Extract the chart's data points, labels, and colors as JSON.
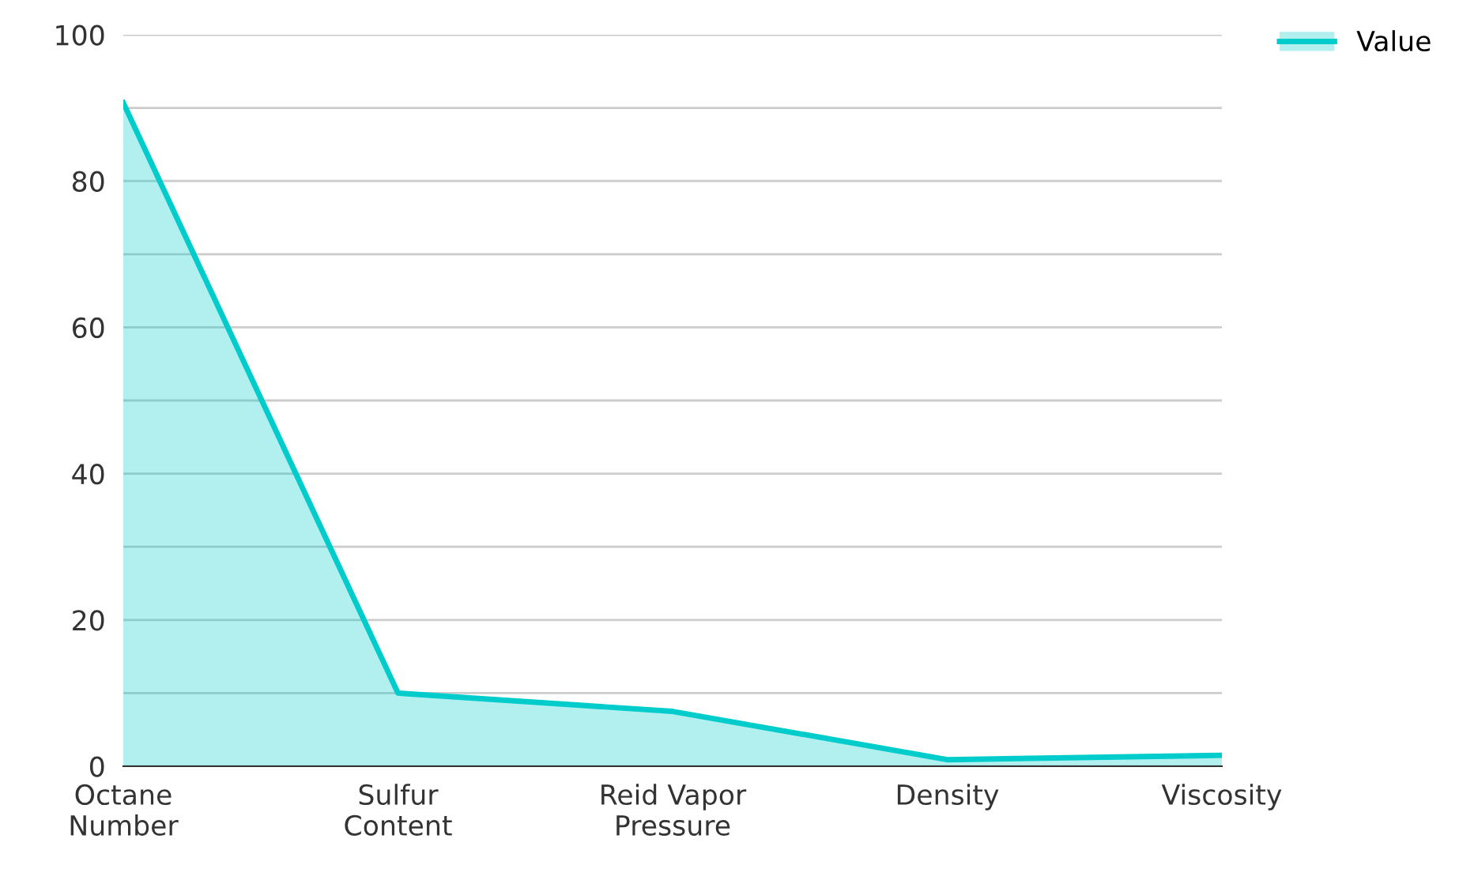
{
  "chart_data": {
    "type": "area",
    "categories": [
      "Octane\nNumber",
      "Sulfur\nContent",
      "Reid Vapor\nPressure",
      "Density",
      "Viscosity"
    ],
    "series": [
      {
        "name": "Value",
        "color": "#00cccc",
        "values": [
          90.7,
          10,
          7.5,
          0.9,
          1.5
        ]
      }
    ],
    "ylim": [
      0,
      100
    ],
    "yticks": [
      0,
      {
        "value": 10,
        "label": null
      },
      20,
      {
        "value": 30,
        "label": null
      },
      40,
      {
        "value": 50,
        "label": null
      },
      60,
      {
        "value": 70,
        "label": null
      },
      80,
      {
        "value": 90,
        "label": null
      },
      100
    ],
    "grid": "y",
    "legend": "top right"
  }
}
